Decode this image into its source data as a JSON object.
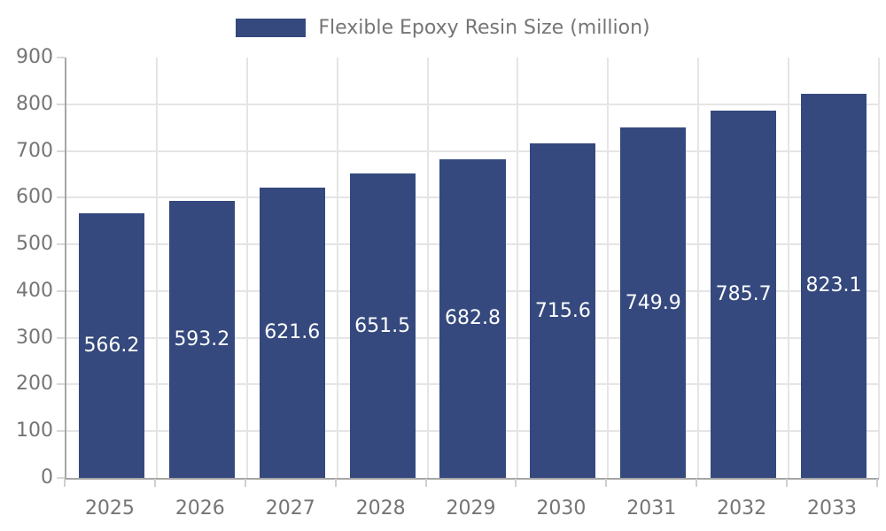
{
  "chart_data": {
    "type": "bar",
    "title": "Flexible Epoxy Resin Size (million)",
    "legend": [
      "Flexible Epoxy Resin Size (million)"
    ],
    "legend_position": "top-center",
    "categories": [
      "2025",
      "2026",
      "2027",
      "2028",
      "2029",
      "2030",
      "2031",
      "2032",
      "2033"
    ],
    "series": [
      {
        "name": "Flexible Epoxy Resin Size (million)",
        "values": [
          566.2,
          593.2,
          621.6,
          651.5,
          682.8,
          715.6,
          749.9,
          785.7,
          823.1
        ]
      }
    ],
    "xlabel": "",
    "ylabel": "",
    "ylim": [
      0,
      900
    ],
    "ytick_step": 100,
    "grid": true,
    "value_labels_shown": true,
    "value_label_decimals": 1,
    "colors": {
      "bar": "#35497E",
      "axis_text": "#757575",
      "value_label_text": "#ffffff",
      "grid_line": "#e5e5e5",
      "axis_line": "#a6a6a6"
    }
  }
}
